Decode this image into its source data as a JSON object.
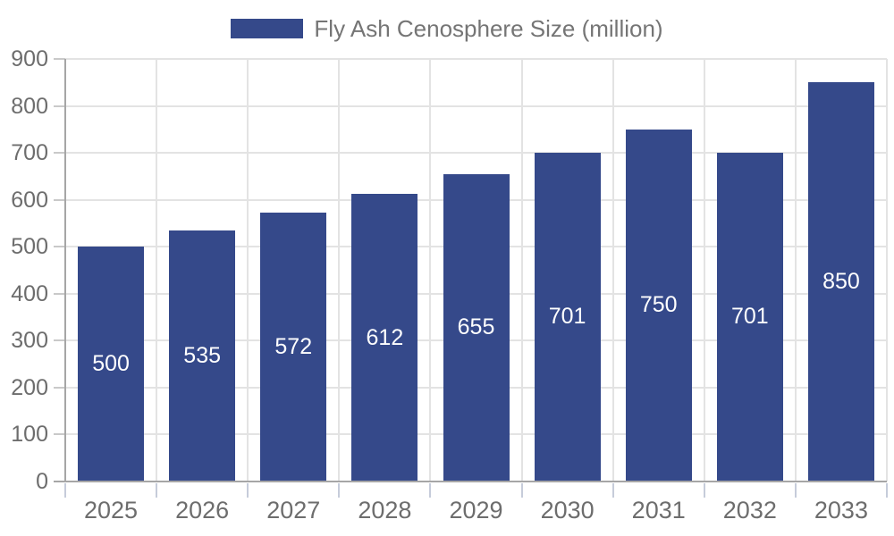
{
  "chart_data": {
    "type": "bar",
    "title": "Fly Ash Cenosphere Size (million)",
    "legend": {
      "position": "top",
      "label": "Fly Ash Cenosphere Size (million)"
    },
    "categories": [
      "2025",
      "2026",
      "2027",
      "2028",
      "2029",
      "2030",
      "2031",
      "2032",
      "2033"
    ],
    "values": [
      500,
      535,
      572,
      612,
      655,
      701,
      750,
      701,
      850
    ],
    "bar_labels": [
      "500",
      "535",
      "572",
      "612",
      "655",
      "701",
      "750",
      "701",
      "850"
    ],
    "xlabel": "",
    "ylabel": "",
    "ylim": [
      0,
      900
    ],
    "yticks": [
      0,
      100,
      200,
      300,
      400,
      500,
      600,
      700,
      800,
      900
    ],
    "grid": true,
    "value_label_position": "center-of-bar",
    "colors": {
      "bar": "#35498A",
      "bar_label": "#FFFFFF",
      "gridline": "#E3E3E3",
      "axis_line": "#A6A6A6",
      "y_tick": "#C9C9C9",
      "x_tick": "#C6CCDA",
      "axis_label": "#6D6D6D",
      "legend_text": "#757575"
    }
  }
}
